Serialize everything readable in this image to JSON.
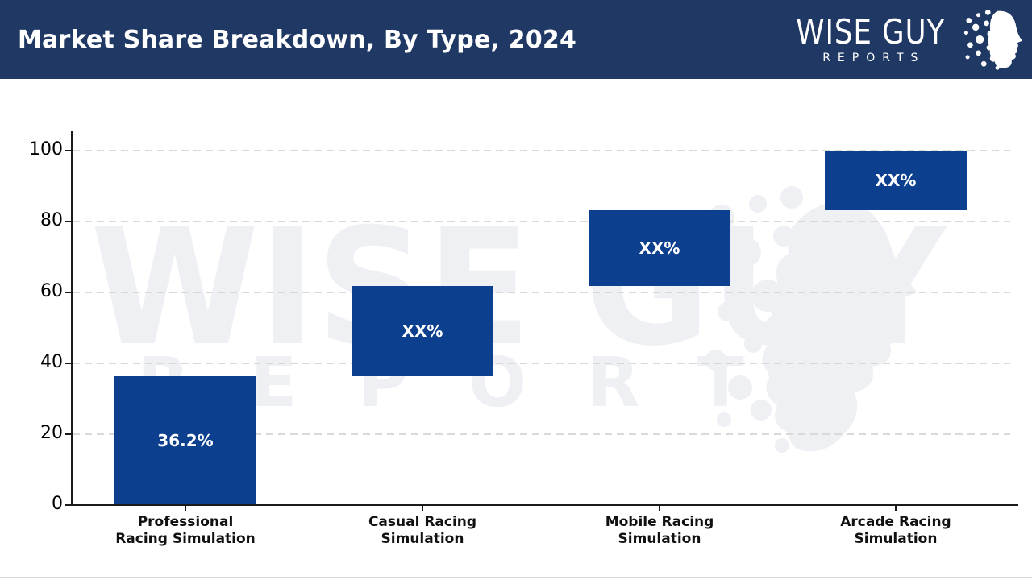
{
  "header": {
    "title": "Market Share Breakdown, By Type, 2024"
  },
  "logo": {
    "name": "WISE GUY",
    "tagline": "REPORTS"
  },
  "watermark": {
    "line1": "WISE GUY",
    "line2": "REPORTS"
  },
  "colors": {
    "header_bg": "#1f3864",
    "bar": "#0d3f8f",
    "bar_label": "#ffffff",
    "grid": "#d9d9d9",
    "axis": "#1a1a1a",
    "watermark": "#eef0f3"
  },
  "chart_data": {
    "type": "bar",
    "subtype": "waterfall",
    "title": "Market Share Breakdown, By Type, 2024",
    "categories": [
      "Professional\nRacing Simulation",
      "Casual Racing\nSimulation",
      "Mobile Racing\nSimulation",
      "Arcade Racing\nSimulation"
    ],
    "segments": [
      {
        "label": "36.2%",
        "base": 0,
        "top": 36.2,
        "value": 36.2
      },
      {
        "label": "XX%",
        "base": 36.2,
        "top": 61.8,
        "value": 25.6
      },
      {
        "label": "XX%",
        "base": 61.8,
        "top": 83,
        "value": 21.2
      },
      {
        "label": "XX%",
        "base": 83,
        "top": 100,
        "value": 17
      }
    ],
    "ylim": [
      0,
      100
    ],
    "yticks": [
      0,
      20,
      40,
      60,
      80,
      100
    ],
    "grid": "horizontal dashed",
    "legend": null
  }
}
